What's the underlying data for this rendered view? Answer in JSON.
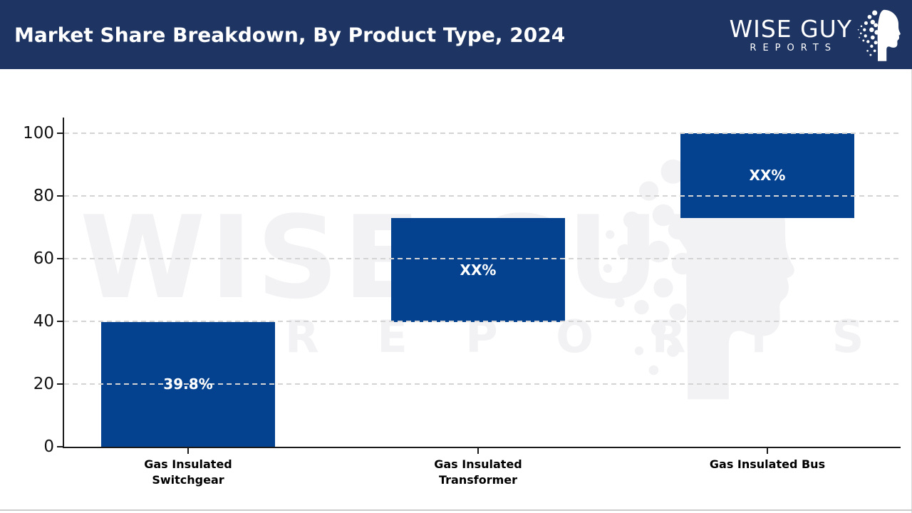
{
  "header": {
    "title": "Market Share Breakdown, By Product Type, 2024",
    "logo": {
      "line1": "WISE GUY",
      "line2": "REPORTS"
    }
  },
  "watermark": {
    "line1": "WISE GUY",
    "line2": "R E P O R T S"
  },
  "colors": {
    "header_bg": "#1e3462",
    "bar_color": "#04418f",
    "gridline": "#d4d4d4",
    "watermark": "#f2f2f4",
    "bar_label_text": "#ffffff",
    "axis": "#1a1a1a"
  },
  "chart_data": {
    "type": "bar",
    "subtype": "waterfall-floating-bars",
    "title": "Market Share Breakdown, By Product Type, 2024",
    "xlabel": "",
    "ylabel": "",
    "categories": [
      "Gas Insulated Switchgear",
      "Gas Insulated Transformer",
      "Gas Insulated Bus"
    ],
    "category_label_lines": [
      [
        "Gas Insulated",
        "Switchgear"
      ],
      [
        "Gas Insulated",
        "Transformer"
      ],
      [
        "Gas Insulated Bus"
      ]
    ],
    "bars": [
      {
        "category": "Gas Insulated Switchgear",
        "base": 0,
        "top": 39.8,
        "label": "39.8%"
      },
      {
        "category": "Gas Insulated Transformer",
        "base": 39.8,
        "top": 73,
        "label": "XX%"
      },
      {
        "category": "Gas Insulated Bus",
        "base": 73,
        "top": 100,
        "label": "XX%"
      }
    ],
    "yticks": [
      0,
      20,
      40,
      60,
      80,
      100
    ],
    "ylim": [
      0,
      105
    ],
    "grid": "dashed-horizontal-over-bars",
    "legend": "none"
  }
}
